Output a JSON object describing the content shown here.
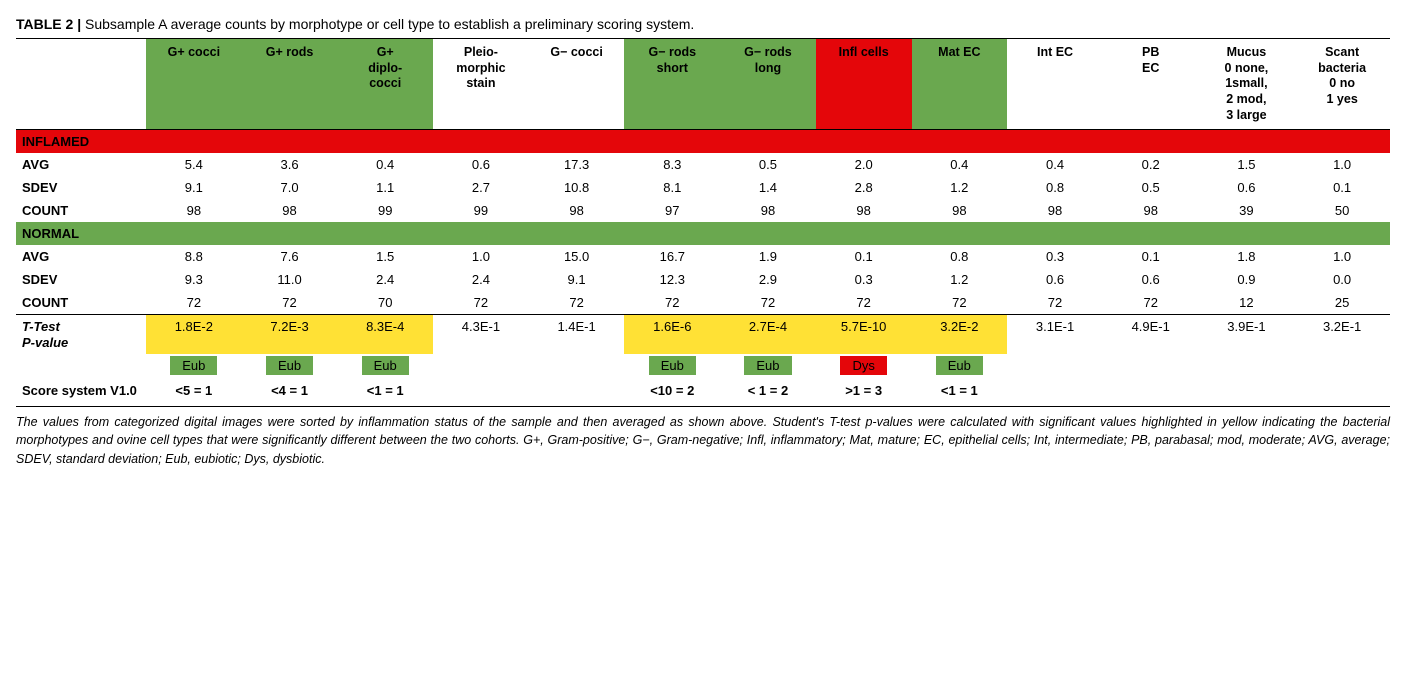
{
  "title_label": "TABLE 2 |",
  "title_text": " Subsample A average counts by morphotype or cell type to establish a preliminary scoring system.",
  "columns": [
    {
      "label": "G+ cocci",
      "cls": "hd-green"
    },
    {
      "label": "G+ rods",
      "cls": "hd-green"
    },
    {
      "label": "G+\ndiplo-\ncocci",
      "cls": "hd-green"
    },
    {
      "label": "Pleio-\nmorphic\nstain",
      "cls": ""
    },
    {
      "label": "G− cocci",
      "cls": ""
    },
    {
      "label": "G− rods\nshort",
      "cls": "hd-green"
    },
    {
      "label": "G− rods\nlong",
      "cls": "hd-green"
    },
    {
      "label": "Infl cells",
      "cls": "hd-red"
    },
    {
      "label": "Mat EC",
      "cls": "hd-green"
    },
    {
      "label": "Int EC",
      "cls": ""
    },
    {
      "label": "PB\nEC",
      "cls": ""
    },
    {
      "label": "Mucus\n0 none,\n1small,\n2 mod,\n3 large",
      "cls": ""
    },
    {
      "label": "Scant\nbacteria\n0 no\n1 yes",
      "cls": ""
    }
  ],
  "section_inflamed": "INFLAMED",
  "section_normal": "NORMAL",
  "row_labels": {
    "avg": "AVG",
    "sdev": "SDEV",
    "count": "COUNT",
    "ttest_a": "T-Test",
    "ttest_b": "P-value",
    "score": "Score system V1.0"
  },
  "inflamed": {
    "avg": [
      "5.4",
      "3.6",
      "0.4",
      "0.6",
      "17.3",
      "8.3",
      "0.5",
      "2.0",
      "0.4",
      "0.4",
      "0.2",
      "1.5",
      "1.0"
    ],
    "sdev": [
      "9.1",
      "7.0",
      "1.1",
      "2.7",
      "10.8",
      "8.1",
      "1.4",
      "2.8",
      "1.2",
      "0.8",
      "0.5",
      "0.6",
      "0.1"
    ],
    "count": [
      "98",
      "98",
      "99",
      "99",
      "98",
      "97",
      "98",
      "98",
      "98",
      "98",
      "98",
      "39",
      "50"
    ]
  },
  "normal": {
    "avg": [
      "8.8",
      "7.6",
      "1.5",
      "1.0",
      "15.0",
      "16.7",
      "1.9",
      "0.1",
      "0.8",
      "0.3",
      "0.1",
      "1.8",
      "1.0"
    ],
    "sdev": [
      "9.3",
      "11.0",
      "2.4",
      "2.4",
      "9.1",
      "12.3",
      "2.9",
      "0.3",
      "1.2",
      "0.6",
      "0.6",
      "0.9",
      "0.0"
    ],
    "count": [
      "72",
      "72",
      "70",
      "72",
      "72",
      "72",
      "72",
      "72",
      "72",
      "72",
      "72",
      "12",
      "25"
    ]
  },
  "pvalues": [
    {
      "v": "1.8E-2",
      "hl": true
    },
    {
      "v": "7.2E-3",
      "hl": true
    },
    {
      "v": "8.3E-4",
      "hl": true
    },
    {
      "v": "4.3E-1",
      "hl": false
    },
    {
      "v": "1.4E-1",
      "hl": false
    },
    {
      "v": "1.6E-6",
      "hl": true
    },
    {
      "v": "2.7E-4",
      "hl": true
    },
    {
      "v": "5.7E-10",
      "hl": true
    },
    {
      "v": "3.2E-2",
      "hl": true
    },
    {
      "v": "3.1E-1",
      "hl": false
    },
    {
      "v": "4.9E-1",
      "hl": false
    },
    {
      "v": "3.9E-1",
      "hl": false
    },
    {
      "v": "3.2E-1",
      "hl": false
    }
  ],
  "tags": [
    {
      "v": "Eub",
      "cls": "tag-green"
    },
    {
      "v": "Eub",
      "cls": "tag-green"
    },
    {
      "v": "Eub",
      "cls": "tag-green"
    },
    {
      "v": "",
      "cls": ""
    },
    {
      "v": "",
      "cls": ""
    },
    {
      "v": "Eub",
      "cls": "tag-green"
    },
    {
      "v": "Eub",
      "cls": "tag-green"
    },
    {
      "v": "Dys",
      "cls": "tag-red"
    },
    {
      "v": "Eub",
      "cls": "tag-green"
    },
    {
      "v": "",
      "cls": ""
    },
    {
      "v": "",
      "cls": ""
    },
    {
      "v": "",
      "cls": ""
    },
    {
      "v": "",
      "cls": ""
    }
  ],
  "scores": [
    "<5 = 1",
    "<4 = 1",
    "<1 = 1",
    "",
    "",
    "<10 = 2",
    "< 1 = 2",
    ">1 = 3",
    "<1 = 1",
    "",
    "",
    "",
    ""
  ],
  "caption": "The values from categorized digital images were sorted by inflammation status of the sample and then averaged as shown above. Student's T-test p-values were calculated with significant values highlighted in yellow indicating the bacterial morphotypes and ovine cell types that were significantly different between the two cohorts. G+, Gram-positive; G−, Gram-negative; Infl, inflammatory; Mat, mature; EC, epithelial cells; Int, intermediate; PB, parabasal; mod, moderate; AVG, average; SDEV, standard deviation; Eub, eubiotic; Dys, dysbiotic."
}
